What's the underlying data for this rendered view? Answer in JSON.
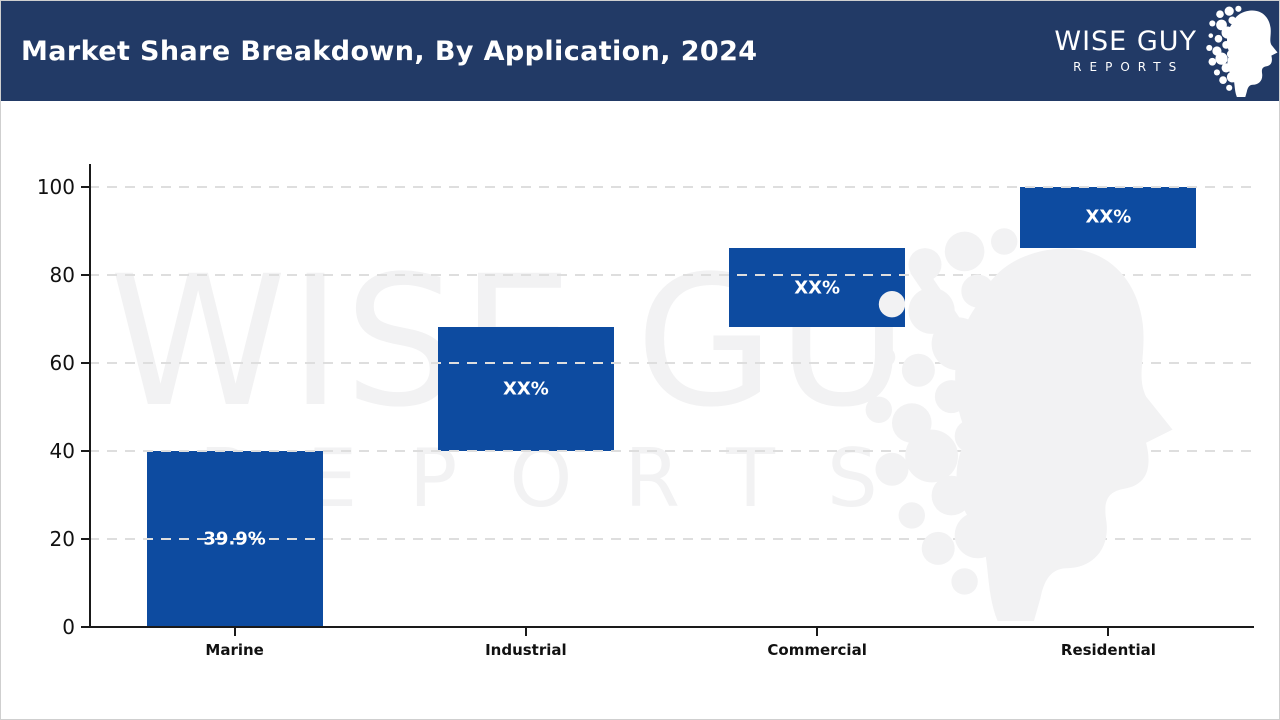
{
  "header": {
    "title": "Market Share Breakdown, By Application, 2024",
    "logo": {
      "line1": "WISE GUY",
      "line2": "REPORTS"
    }
  },
  "watermark": {
    "line1": "WISE GUY",
    "line2": "REPORTS"
  },
  "colors": {
    "header_bg": "#223A66",
    "bar": "#0D4BA0",
    "grid": "#dedede",
    "axis": "#1a1a1a",
    "watermark": "#f2f2f3"
  },
  "chart_data": {
    "type": "bar",
    "subtype": "stacked_waterfall_percent",
    "title": "Market Share Breakdown, By Application, 2024",
    "categories": [
      "Marine",
      "Industrial",
      "Commercial",
      "Residential"
    ],
    "segments": [
      {
        "category": "Marine",
        "start": 0,
        "end": 39.9,
        "label": "39.9%"
      },
      {
        "category": "Industrial",
        "start": 39.9,
        "end": 68.1,
        "label": "XX%"
      },
      {
        "category": "Commercial",
        "start": 68.1,
        "end": 86.2,
        "label": "XX%"
      },
      {
        "category": "Residential",
        "start": 86.2,
        "end": 100,
        "label": "XX%"
      }
    ],
    "y_ticks": [
      0,
      20,
      40,
      60,
      80,
      100
    ],
    "ylim": [
      0,
      105
    ],
    "xlabel": "",
    "ylabel": "",
    "grid": "horizontal-dashed",
    "legend": "none"
  }
}
